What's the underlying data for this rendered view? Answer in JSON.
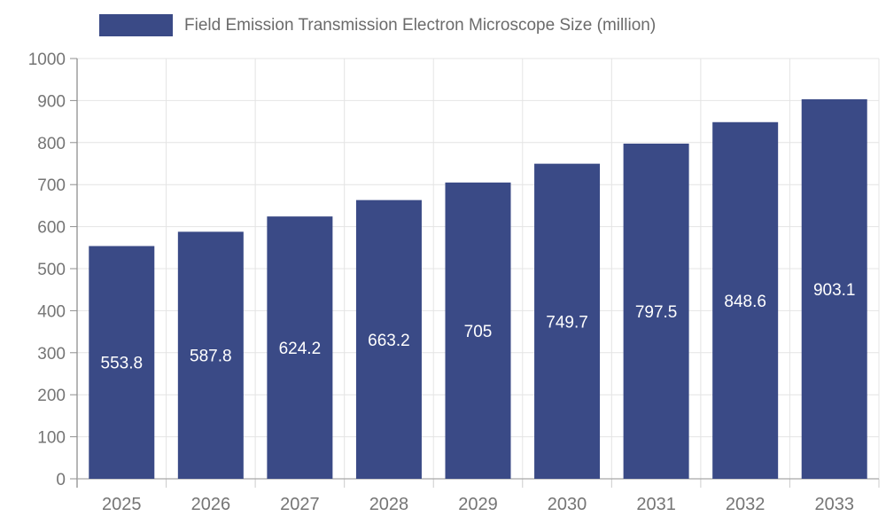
{
  "legend": {
    "label": "Field Emission Transmission Electron Microscope Size (million)"
  },
  "chart_data": {
    "type": "bar",
    "title": "",
    "xlabel": "",
    "ylabel": "",
    "categories": [
      "2025",
      "2026",
      "2027",
      "2028",
      "2029",
      "2030",
      "2031",
      "2032",
      "2033"
    ],
    "values": [
      553.8,
      587.8,
      624.2,
      663.2,
      705,
      749.7,
      797.5,
      848.6,
      903.1
    ],
    "value_labels": [
      "553.8",
      "587.8",
      "624.2",
      "663.2",
      "705",
      "749.7",
      "797.5",
      "848.6",
      "903.1"
    ],
    "series_name": "Field Emission Transmission Electron Microscope Size (million)",
    "ylim": [
      0,
      1000
    ],
    "yticks": [
      0,
      100,
      200,
      300,
      400,
      500,
      600,
      700,
      800,
      900,
      1000
    ],
    "grid": true,
    "legend_position": "top-left",
    "value_label_position": "inside-center"
  },
  "colors": {
    "bar": "#3a4a86",
    "bar_value_text": "#ffffff",
    "axis_tick_text": "#757575",
    "legend_text": "#6b6b6b",
    "y_axis_line": "#8f8f8f",
    "x_axis_line": "#a8a8a8",
    "gridline": "#e4e4e4",
    "background": "#ffffff"
  }
}
